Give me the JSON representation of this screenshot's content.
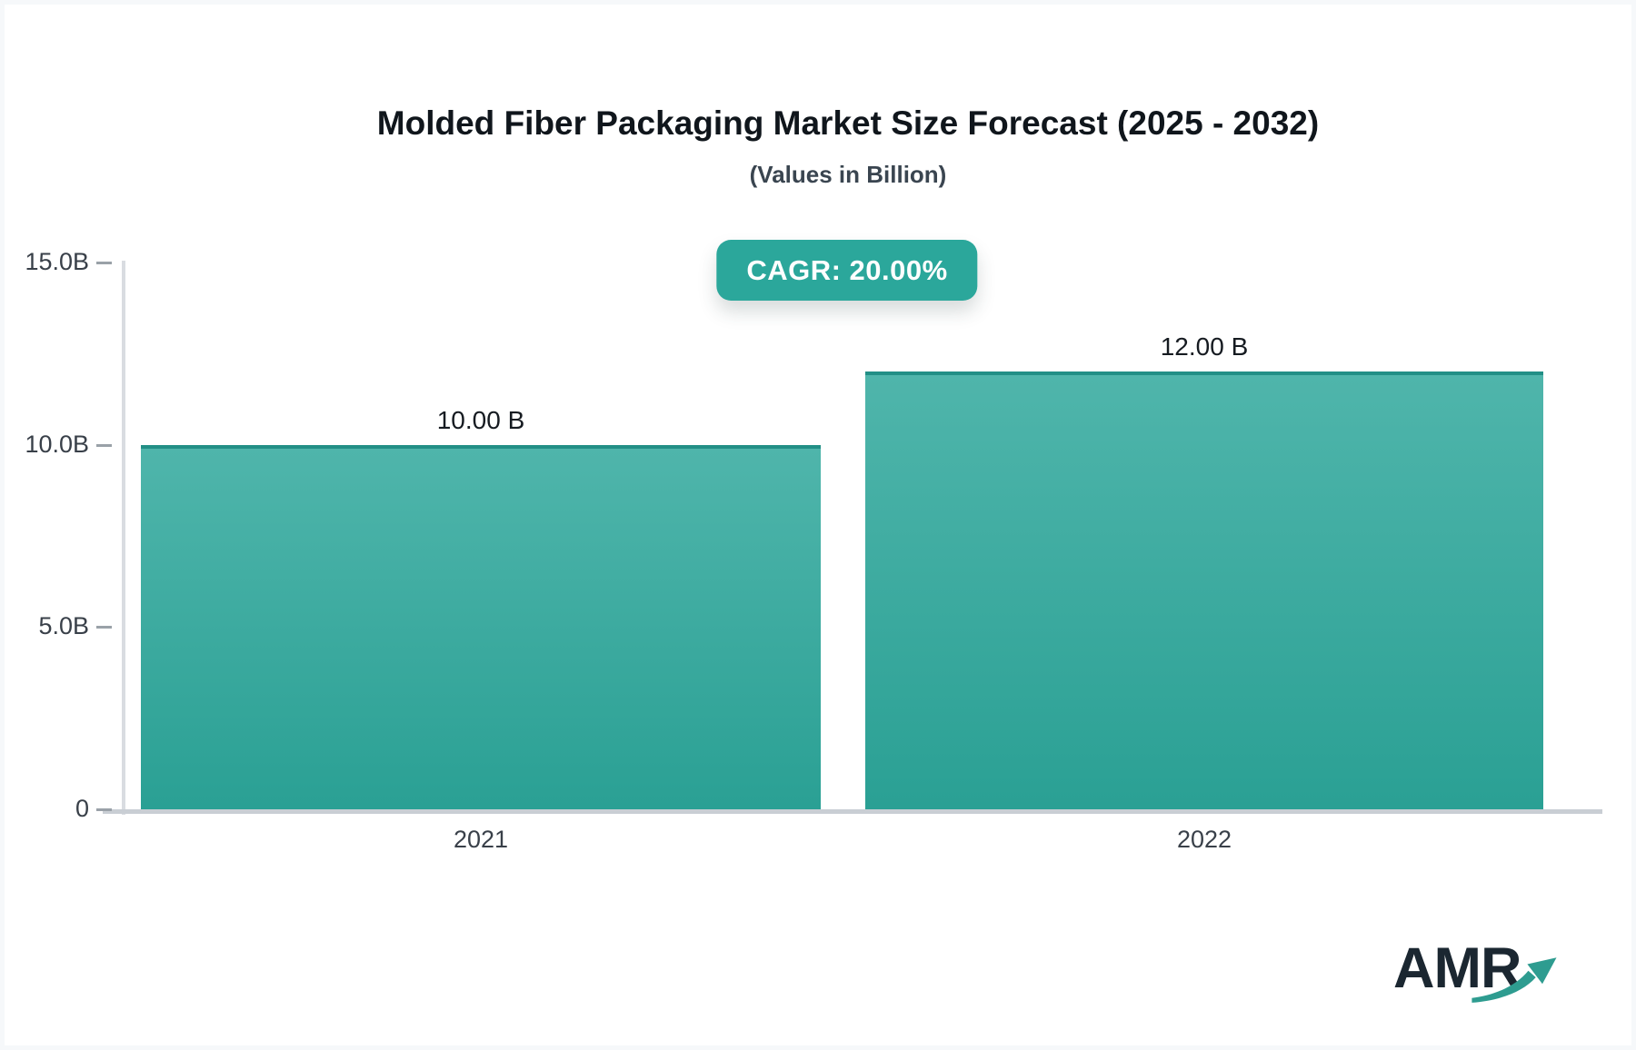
{
  "chart_data": {
    "type": "bar",
    "title": "Molded Fiber Packaging Market Size Forecast (2025 - 2032)",
    "subtitle": "(Values in Billion)",
    "categories": [
      "2021",
      "2022"
    ],
    "values": [
      10.0,
      12.0
    ],
    "value_labels": [
      "10.00 B",
      "12.00 B"
    ],
    "ylim": [
      0,
      15
    ],
    "y_ticks": [
      {
        "value": 15,
        "label": "15.0B"
      },
      {
        "value": 10,
        "label": "10.0B"
      },
      {
        "value": 5,
        "label": "5.0B"
      },
      {
        "value": 0,
        "label": "0"
      }
    ],
    "grid": false,
    "legend": false,
    "xlabel": "",
    "ylabel": ""
  },
  "badge": {
    "label": "CAGR: 20.00%"
  },
  "colors": {
    "badge": "#2ba79b",
    "bar_gradient_top": "#4fb5ab",
    "bar_gradient_bottom": "#2aa094",
    "bar_top_border": "#228f86",
    "logo_arrow": "#2e9c90"
  },
  "logo": {
    "text": "AMR"
  }
}
